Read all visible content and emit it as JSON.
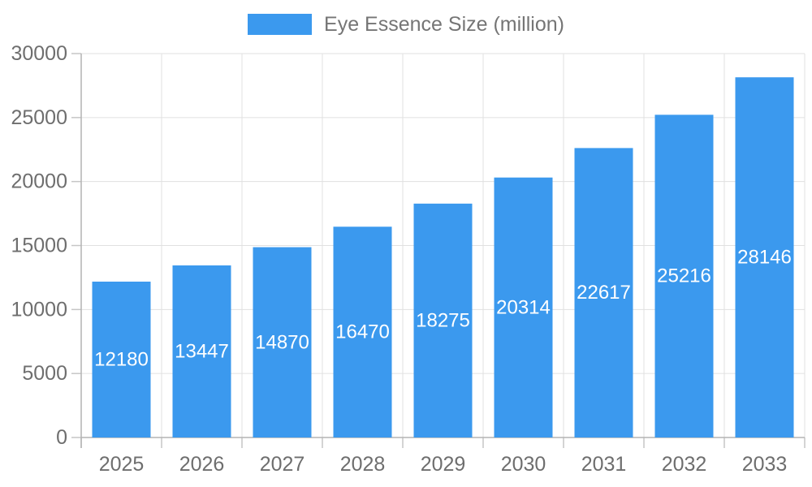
{
  "chart_data": {
    "type": "bar",
    "title": "Eye Essence Size (million)",
    "legend_label": "Eye Essence Size (million)",
    "categories": [
      "2025",
      "2026",
      "2027",
      "2028",
      "2029",
      "2030",
      "2031",
      "2032",
      "2033"
    ],
    "series": [
      {
        "name": "Eye Essence Size (million)",
        "values": [
          12180,
          13447,
          14870,
          16470,
          18275,
          20314,
          22617,
          25216,
          28146
        ]
      }
    ],
    "data_labels_visible": true,
    "xlabel": "",
    "ylabel": "",
    "ylim": [
      0,
      30000
    ],
    "ytick_step": 5000,
    "ytick_labels": [
      "0",
      "5000",
      "10000",
      "15000",
      "20000",
      "25000",
      "30000"
    ],
    "grid": true,
    "legend_position": "top",
    "colors": {
      "bar_fill": "#3b99ee",
      "bar_label_text": "#ffffff",
      "axis_text": "#6e6e6e",
      "legend_text": "#757575",
      "grid_line": "#e0e0e0",
      "axis_line": "#b3b3b3",
      "tick_line": "#c6c6c6",
      "background": "#ffffff"
    }
  }
}
